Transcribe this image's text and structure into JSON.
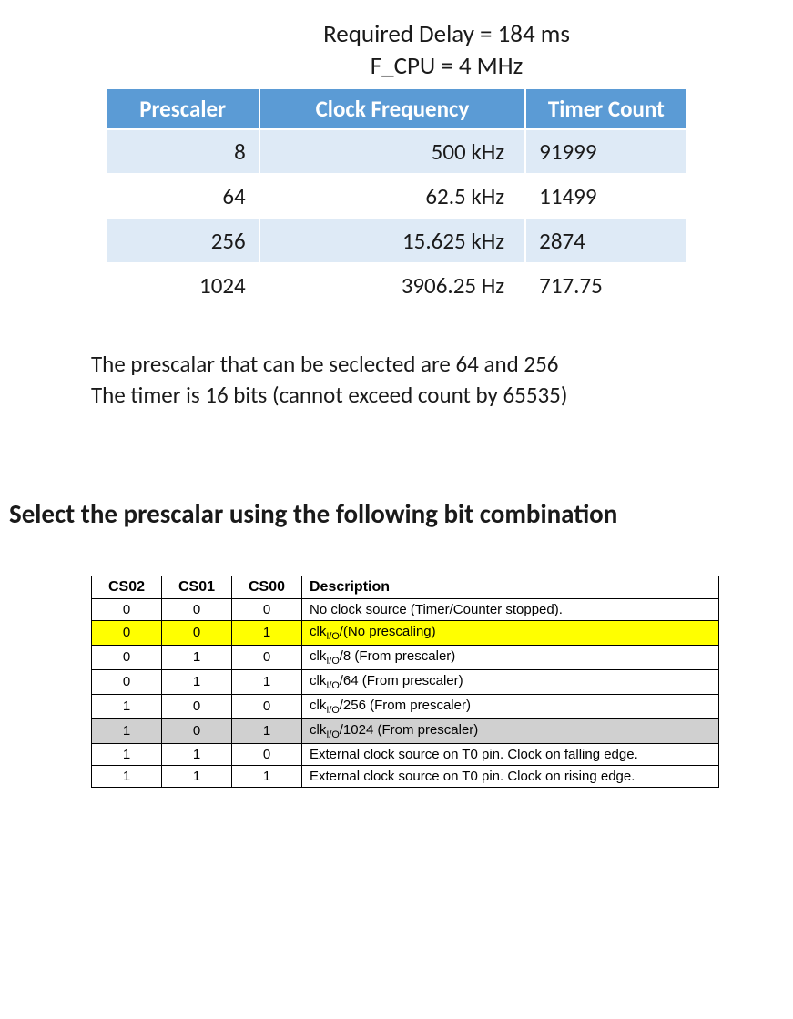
{
  "header": {
    "line1": "Required Delay = 184 ms",
    "line2": "F_CPU = 4 MHz"
  },
  "prescaler_table": {
    "columns": [
      "Prescaler",
      "Clock Frequency",
      "Timer Count"
    ],
    "rows": [
      {
        "prescaler": "8",
        "freq": "500 kHz",
        "count": "91999"
      },
      {
        "prescaler": "64",
        "freq": "62.5 kHz",
        "count": "11499"
      },
      {
        "prescaler": "256",
        "freq": "15.625 kHz",
        "count": "2874"
      },
      {
        "prescaler": "1024",
        "freq": "3906.25 Hz",
        "count": "717.75"
      }
    ],
    "header_bg": "#5b9bd5",
    "header_color": "#ffffff",
    "row_odd_bg": "#deeaf6",
    "row_even_bg": "#ffffff",
    "font_size": 25
  },
  "explain": {
    "line1": "The prescalar that can be seclected are 64 and 256",
    "line2": "The timer is 16 bits (cannot exceed count by 65535)"
  },
  "section_title": "Select the prescalar using the following bit combination",
  "bit_table": {
    "columns": [
      "CS02",
      "CS01",
      "CS00",
      "Description"
    ],
    "rows": [
      {
        "cs02": "0",
        "cs01": "0",
        "cs00": "0",
        "desc_html": "No clock source (Timer/Counter stopped).",
        "style": ""
      },
      {
        "cs02": "0",
        "cs01": "0",
        "cs00": "1",
        "desc_html": "clk<sub>I/O</sub>/(No prescaling)",
        "style": "hl"
      },
      {
        "cs02": "0",
        "cs01": "1",
        "cs00": "0",
        "desc_html": "clk<sub>I/O</sub>/8 (From prescaler)",
        "style": ""
      },
      {
        "cs02": "0",
        "cs01": "1",
        "cs00": "1",
        "desc_html": "clk<sub>I/O</sub>/64 (From prescaler)",
        "style": ""
      },
      {
        "cs02": "1",
        "cs01": "0",
        "cs00": "0",
        "desc_html": "clk<sub>I/O</sub>/256 (From prescaler)",
        "style": ""
      },
      {
        "cs02": "1",
        "cs01": "0",
        "cs00": "1",
        "desc_html": "clk<sub>I/O</sub>/1024 (From prescaler)",
        "style": "gr"
      },
      {
        "cs02": "1",
        "cs01": "1",
        "cs00": "0",
        "desc_html": "External clock source on T0 pin. Clock on falling edge.",
        "style": ""
      },
      {
        "cs02": "1",
        "cs01": "1",
        "cs00": "1",
        "desc_html": "External clock source on T0 pin. Clock on rising edge.",
        "style": ""
      }
    ],
    "highlight_bg": "#ffff00",
    "grey_bg": "#d0d0d0",
    "border_color": "#000000",
    "font_size": 15
  }
}
